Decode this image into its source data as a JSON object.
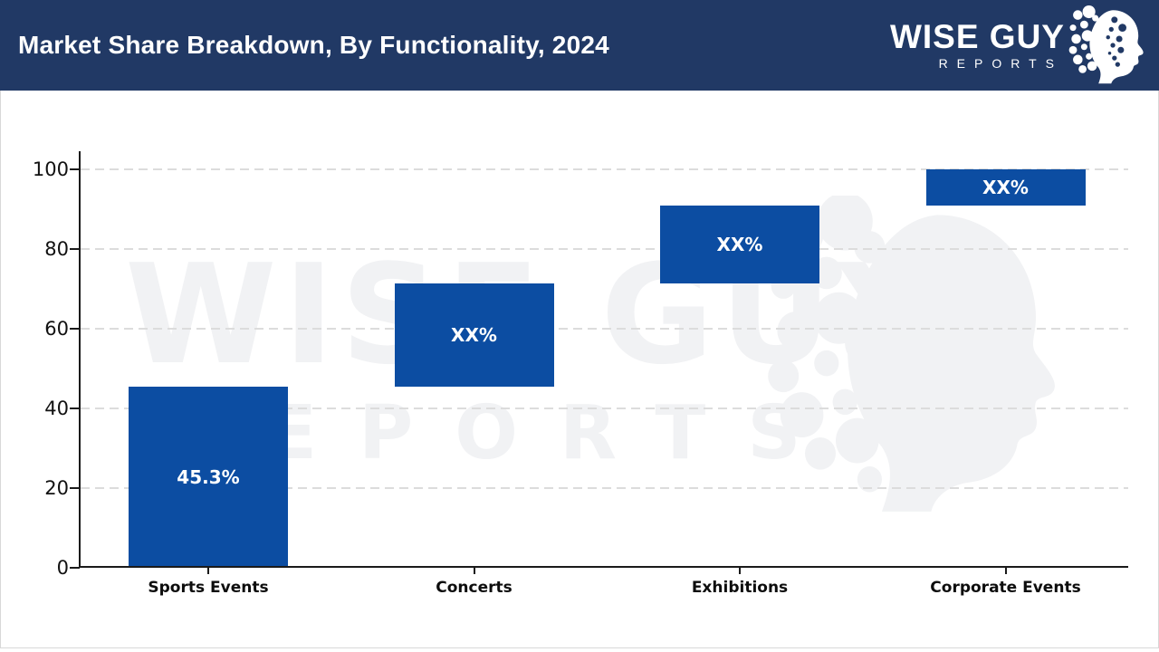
{
  "header": {
    "title": "Market Share Breakdown, By Functionality, 2024",
    "logo": {
      "wordmark": "WISE GUY",
      "subtext": "REPORTS"
    }
  },
  "watermark": {
    "wordmark": "WISE GUY",
    "subtext": "REPORTS"
  },
  "chart_data": {
    "type": "bar",
    "variant": "waterfall-floating-bars",
    "title": "Market Share Breakdown, By Functionality, 2024",
    "categories": [
      "Sports Events",
      "Concerts",
      "Exhibitions",
      "Corporate Events"
    ],
    "segments": [
      {
        "category": "Sports Events",
        "start": 0,
        "end": 45.3,
        "value": 45.3,
        "label": "45.3%"
      },
      {
        "category": "Concerts",
        "start": 45.3,
        "end": 71.3,
        "value": 26.0,
        "label": "XX%"
      },
      {
        "category": "Exhibitions",
        "start": 71.3,
        "end": 90.7,
        "value": 19.4,
        "label": "XX%"
      },
      {
        "category": "Corporate Events",
        "start": 90.7,
        "end": 100.0,
        "value": 9.3,
        "label": "XX%"
      }
    ],
    "xlabel": "",
    "ylabel": "",
    "ylim": [
      0,
      100
    ],
    "yticks": [
      0,
      20,
      40,
      60,
      80,
      100
    ],
    "grid": {
      "axis": "y",
      "style": "dashed",
      "color": "#dcdcdc"
    },
    "legend": "none",
    "colors": {
      "bar": "#0c4da2",
      "bar_label": "#ffffff",
      "axis": "#1a1a1a",
      "tick_label": "#111111"
    }
  },
  "theme": {
    "header_bg": "#213965",
    "header_text": "#ffffff",
    "page_bg": "#ffffff",
    "watermark_color": "#f1f2f4",
    "frame_border": "#d8d8d8"
  }
}
